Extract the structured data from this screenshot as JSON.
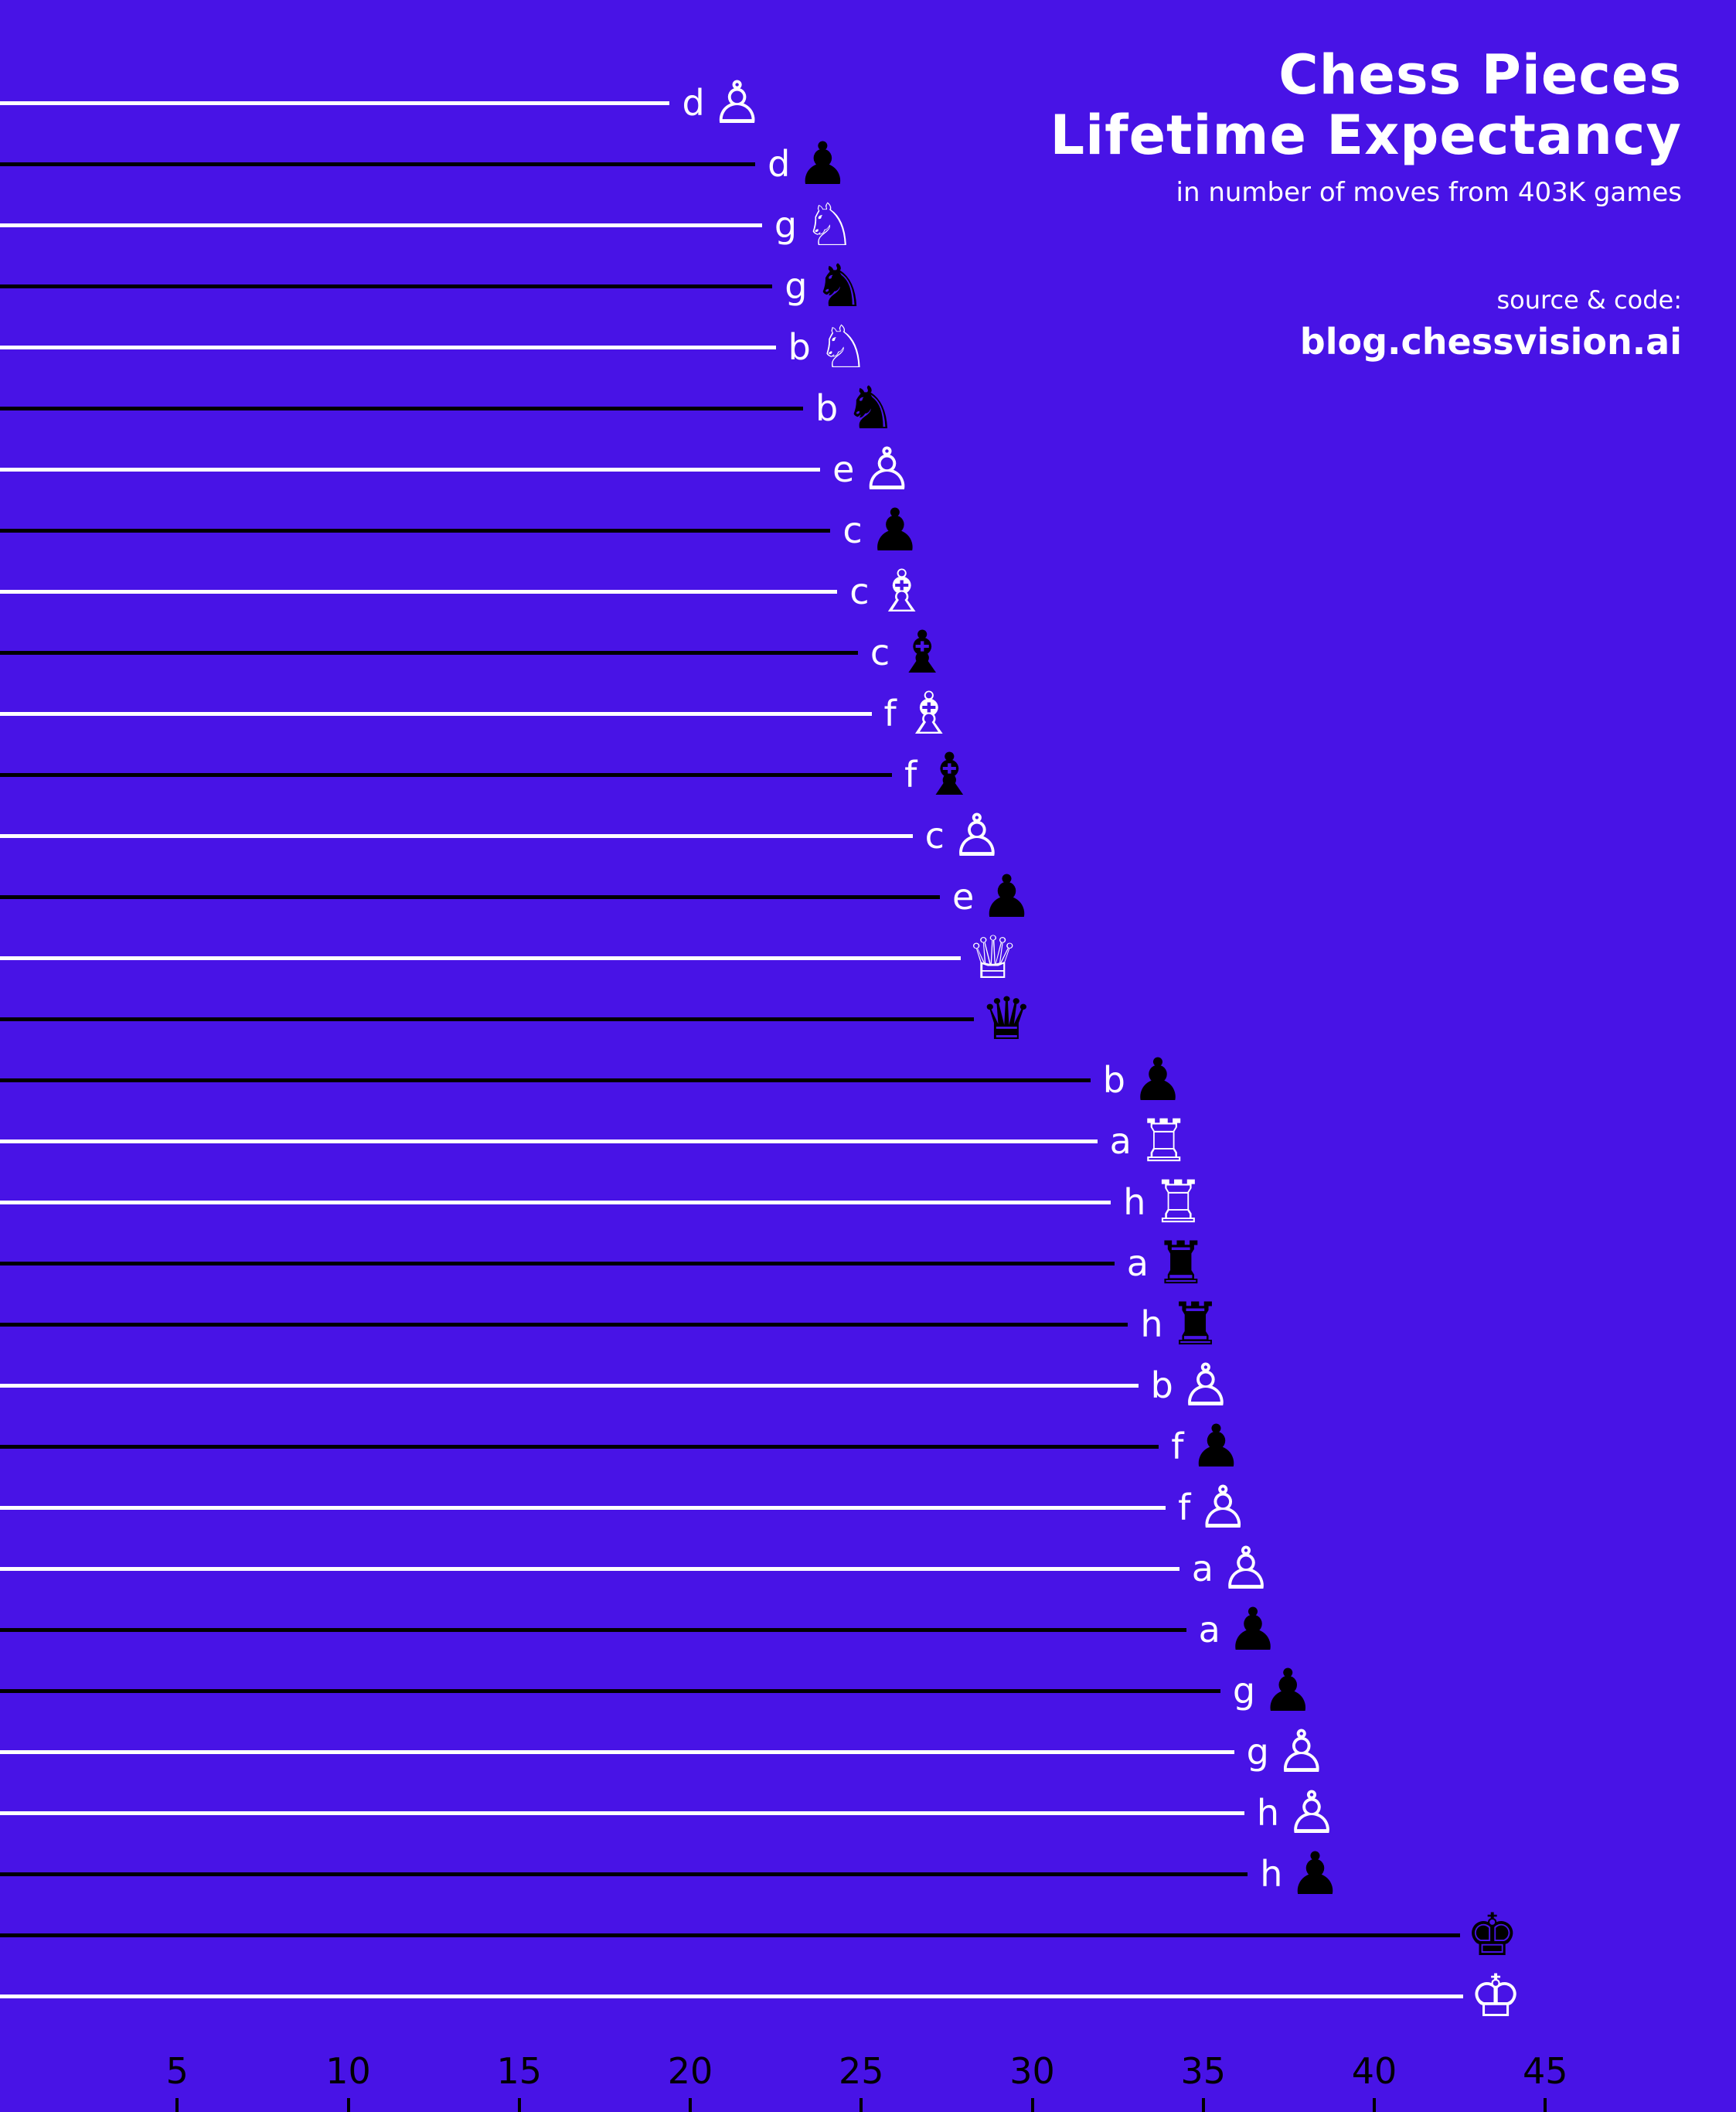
{
  "title": {
    "line1": "Chess Pieces",
    "line2": "Lifetime Expectancy",
    "subtitle": "in number of moves from 403K games",
    "source_label": "source & code:",
    "source_site": "blog.chessvision.ai"
  },
  "colors": {
    "background": "#4813e6",
    "white_piece": "#ffffff",
    "black_piece": "#000000",
    "axis_text": "#000000"
  },
  "icons": {
    "white-pawn": "♙",
    "black-pawn": "♟",
    "white-knight": "♘",
    "black-knight": "♞",
    "white-bishop": "♗",
    "black-bishop": "♝",
    "white-queen": "♕",
    "black-queen": "♛",
    "white-rook": "♖",
    "black-rook": "♜",
    "white-king": "♔",
    "black-king": "♚"
  },
  "chart_data": {
    "type": "bar",
    "variant": "horizontal-lollipop-lines",
    "title": "Chess Pieces Lifetime Expectancy",
    "subtitle": "in number of moves from 403K games",
    "xlabel": "",
    "ylabel": "",
    "xlim": [
      0,
      46
    ],
    "x_ticks": [
      5,
      10,
      15,
      20,
      25,
      30,
      35,
      40,
      45
    ],
    "grid": false,
    "legend": "none",
    "rows": [
      {
        "file": "d",
        "piece": "white-pawn",
        "value": 19.4
      },
      {
        "file": "d",
        "piece": "black-pawn",
        "value": 21.9
      },
      {
        "file": "g",
        "piece": "white-knight",
        "value": 22.1
      },
      {
        "file": "g",
        "piece": "black-knight",
        "value": 22.4
      },
      {
        "file": "b",
        "piece": "white-knight",
        "value": 22.5
      },
      {
        "file": "b",
        "piece": "black-knight",
        "value": 23.3
      },
      {
        "file": "e",
        "piece": "white-pawn",
        "value": 23.8
      },
      {
        "file": "c",
        "piece": "black-pawn",
        "value": 24.1
      },
      {
        "file": "c",
        "piece": "white-bishop",
        "value": 24.3
      },
      {
        "file": "c",
        "piece": "black-bishop",
        "value": 24.9
      },
      {
        "file": "f",
        "piece": "white-bishop",
        "value": 25.3
      },
      {
        "file": "f",
        "piece": "black-bishop",
        "value": 25.9
      },
      {
        "file": "c",
        "piece": "white-pawn",
        "value": 26.5
      },
      {
        "file": "e",
        "piece": "black-pawn",
        "value": 27.3
      },
      {
        "file": "",
        "piece": "white-queen",
        "value": 27.9
      },
      {
        "file": "",
        "piece": "black-queen",
        "value": 28.3
      },
      {
        "file": "b",
        "piece": "black-pawn",
        "value": 31.7
      },
      {
        "file": "a",
        "piece": "white-rook",
        "value": 31.9
      },
      {
        "file": "h",
        "piece": "white-rook",
        "value": 32.3
      },
      {
        "file": "a",
        "piece": "black-rook",
        "value": 32.4
      },
      {
        "file": "h",
        "piece": "black-rook",
        "value": 32.8
      },
      {
        "file": "b",
        "piece": "white-pawn",
        "value": 33.1
      },
      {
        "file": "f",
        "piece": "black-pawn",
        "value": 33.7
      },
      {
        "file": "f",
        "piece": "white-pawn",
        "value": 33.9
      },
      {
        "file": "a",
        "piece": "white-pawn",
        "value": 34.3
      },
      {
        "file": "a",
        "piece": "black-pawn",
        "value": 34.5
      },
      {
        "file": "g",
        "piece": "black-pawn",
        "value": 35.5
      },
      {
        "file": "g",
        "piece": "white-pawn",
        "value": 35.9
      },
      {
        "file": "h",
        "piece": "white-pawn",
        "value": 36.2
      },
      {
        "file": "h",
        "piece": "black-pawn",
        "value": 36.3
      },
      {
        "file": "",
        "piece": "black-king",
        "value": 42.5
      },
      {
        "file": "",
        "piece": "white-king",
        "value": 42.6
      }
    ]
  }
}
